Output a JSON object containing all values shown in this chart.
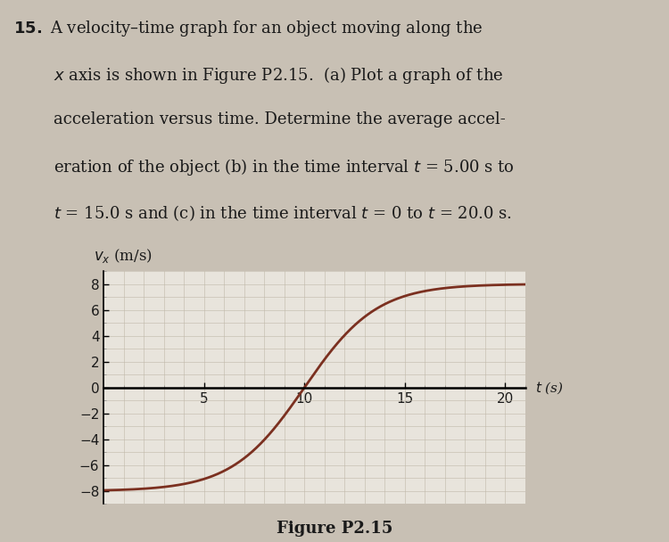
{
  "ylabel": "$v_x$ (m/s)",
  "xlabel": "$t$ (s)",
  "figure_label": "Figure P2.15",
  "xlim": [
    0,
    21
  ],
  "ylim": [
    -9,
    9
  ],
  "xticks": [
    5,
    10,
    15,
    20
  ],
  "yticks": [
    -8,
    -6,
    -4,
    -2,
    0,
    2,
    4,
    6,
    8
  ],
  "curve_color": "#7B3020",
  "curve_linewidth": 2.0,
  "v_min": -8.0,
  "v_max": 8.0,
  "t_mid": 10.0,
  "sigmoid_scale": 1.8,
  "background_color": "#e8e4dc",
  "grid_color": "#c0b8a8",
  "fig_bg": "#c8c0b4",
  "text_color": "#1a1a1a"
}
